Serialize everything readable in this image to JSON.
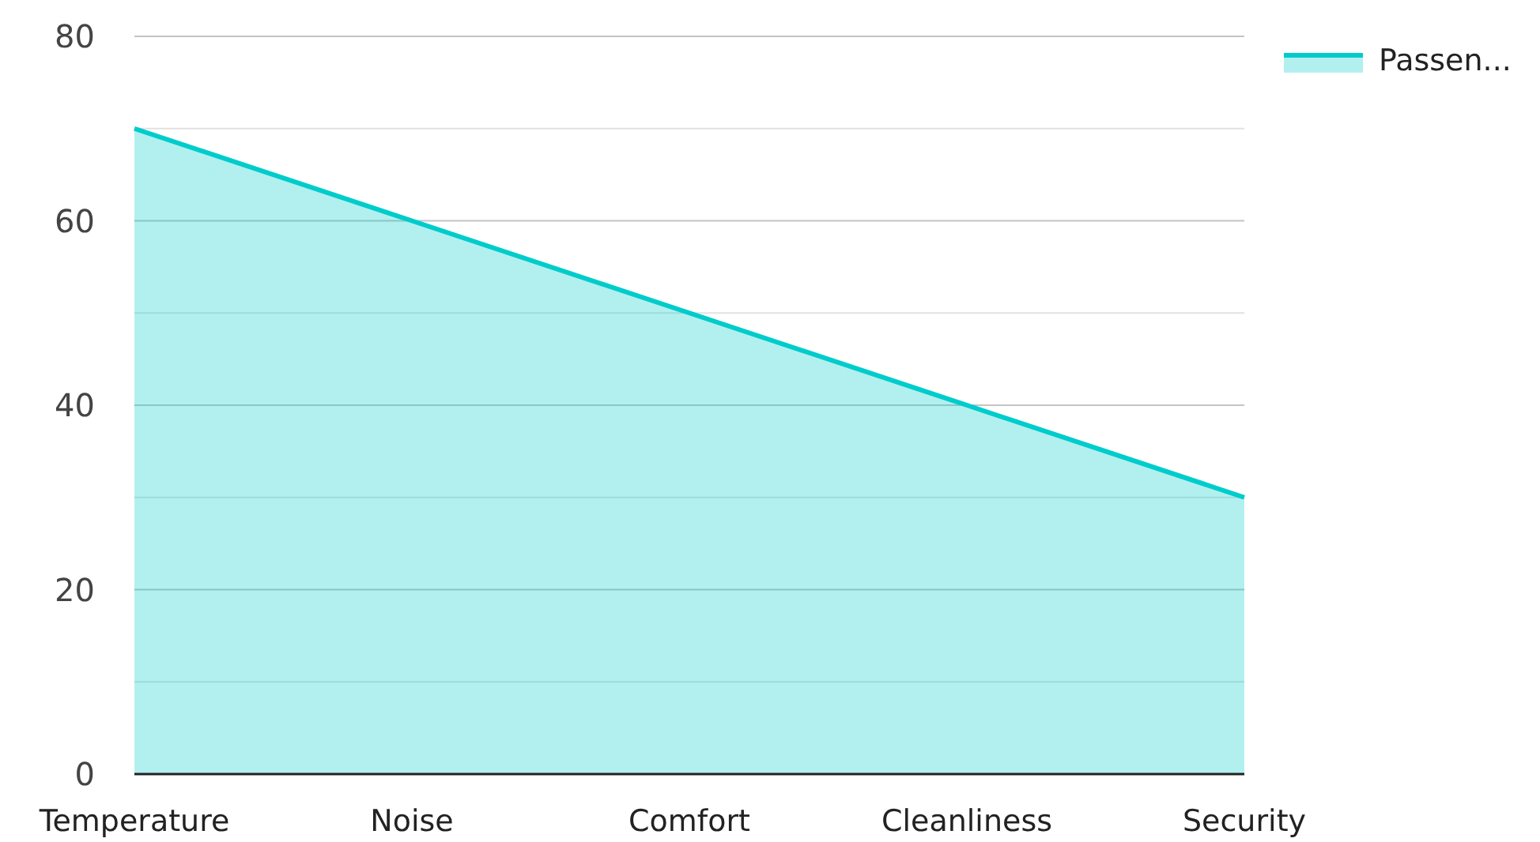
{
  "chart_data": {
    "type": "area",
    "categories": [
      "Temperature",
      "Noise",
      "Comfort",
      "Cleanliness",
      "Security"
    ],
    "series": [
      {
        "name": "Passen...",
        "color": "#00cccc",
        "values": [
          70,
          60,
          50,
          40,
          30
        ]
      }
    ],
    "ylim": [
      0,
      80
    ],
    "yticks": [
      0,
      {
        "value": 10,
        "label": null
      },
      20,
      {
        "value": 30,
        "label": null
      },
      40,
      {
        "value": 50,
        "label": null
      },
      60,
      {
        "value": 70,
        "label": null
      },
      80
    ],
    "grid": "y",
    "legend": "top right"
  }
}
